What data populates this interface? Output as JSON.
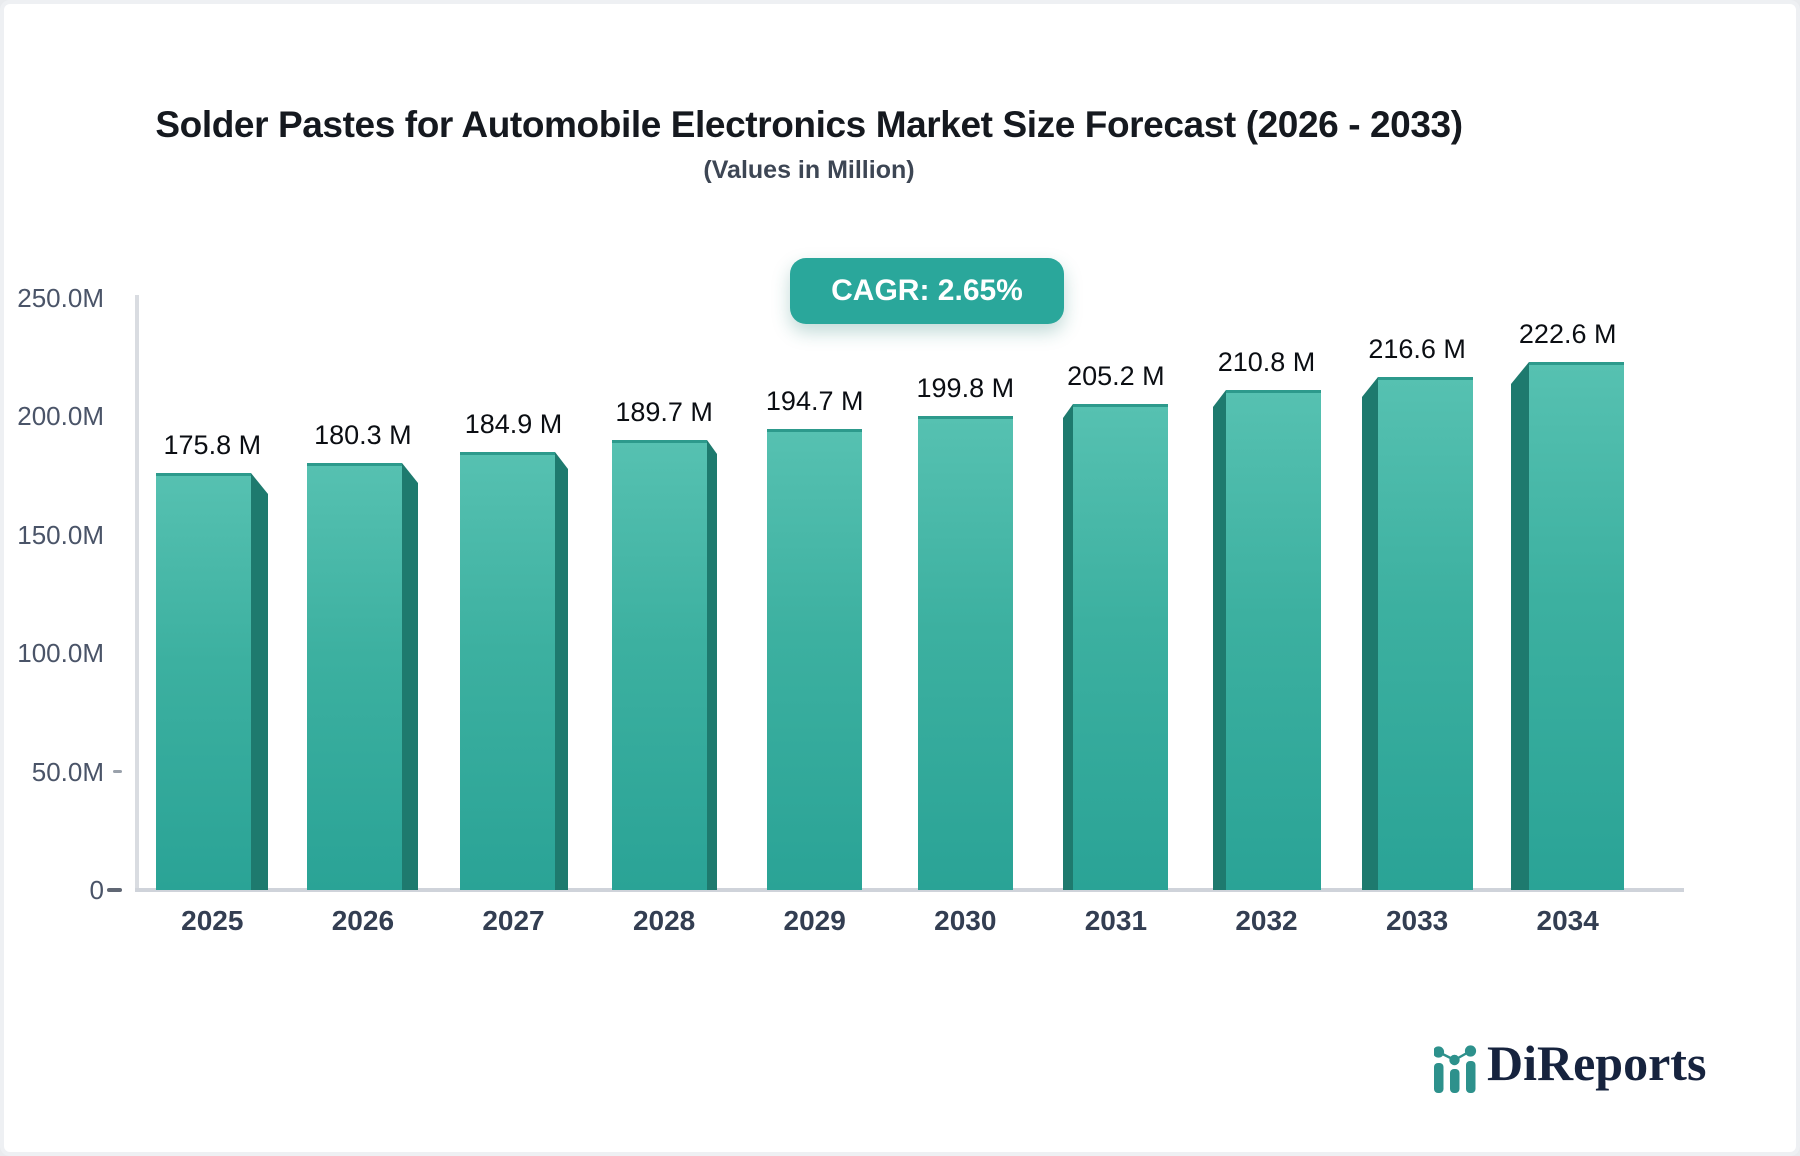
{
  "badge": {
    "label": "CAGR: 2.65%"
  },
  "logo": {
    "text": "DiReports"
  },
  "chart_data": {
    "type": "bar",
    "title": "Solder Pastes for Automobile Electronics Market Size Forecast (2026 - 2033)",
    "subtitle": "(Values in Million)",
    "cagr": "2.65%",
    "unit": "Million",
    "categories": [
      "2025",
      "2026",
      "2027",
      "2028",
      "2029",
      "2030",
      "2031",
      "2032",
      "2033",
      "2034"
    ],
    "values": [
      175.8,
      180.3,
      184.9,
      189.7,
      194.7,
      199.8,
      205.2,
      210.8,
      216.6,
      222.6
    ],
    "value_labels": [
      "175.8 M",
      "180.3 M",
      "184.9 M",
      "189.7 M",
      "194.7 M",
      "199.8 M",
      "205.2 M",
      "210.8 M",
      "216.6 M",
      "222.6 M"
    ],
    "xlabel": "",
    "ylabel": "",
    "ylim": [
      0,
      250
    ],
    "yticks": [
      {
        "value": 0,
        "label": "0"
      },
      {
        "value": 50,
        "label": "50.0M"
      },
      {
        "value": 100,
        "label": "100.0M"
      },
      {
        "value": 150,
        "label": "150.0M"
      },
      {
        "value": 200,
        "label": "200.0M"
      },
      {
        "value": 250,
        "label": "250.0M"
      }
    ],
    "grid": false,
    "legend": false,
    "colors": {
      "bar_top": "#56c1b1",
      "bar_bottom": "#2aa396",
      "bar_side": "#1e7a6e",
      "bar_top_edge": "#2d9a8c",
      "badge_bg": "#2aa79b",
      "title_text": "#15191f",
      "axis_text": "#4a5468",
      "logo_teal": "#2d918c",
      "logo_navy": "#16233e"
    }
  }
}
